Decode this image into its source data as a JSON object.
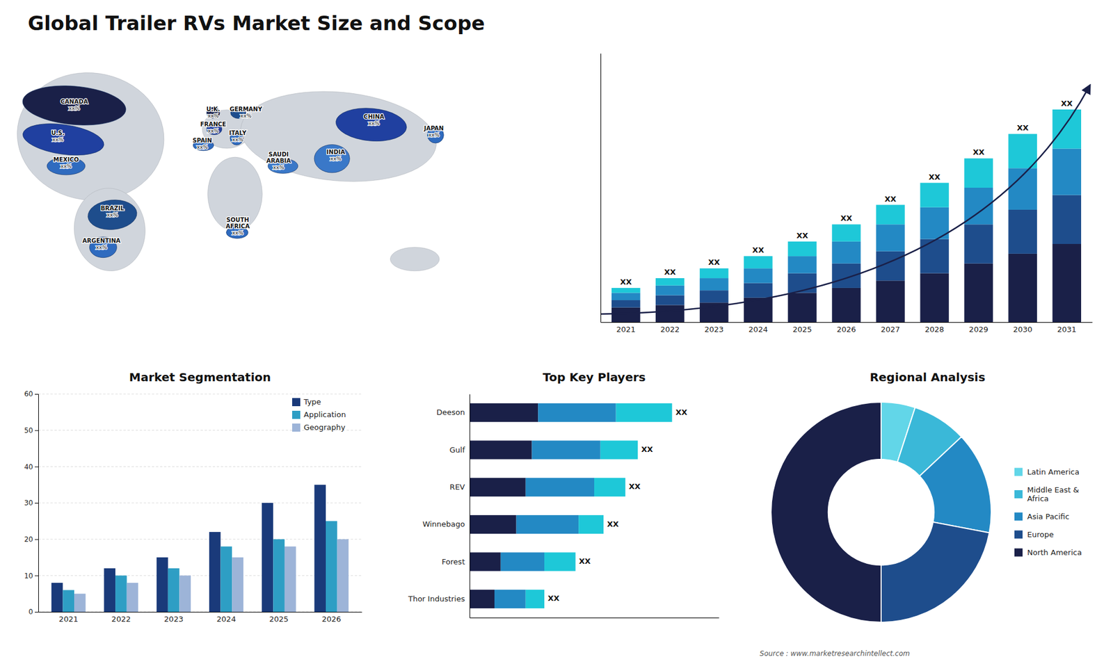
{
  "chart_data": [
    {
      "type": "map",
      "title": "Global Trailer RVs Market Size and Scope",
      "categories": [
        "CANADA",
        "U.S.",
        "MEXICO",
        "BRAZIL",
        "ARGENTINA",
        "U.K.",
        "FRANCE",
        "SPAIN",
        "GERMANY",
        "ITALY",
        "SOUTH\nAFRICA",
        "SAUDI\nARABIA",
        "CHINA",
        "INDIA",
        "JAPAN"
      ],
      "annotations": [
        "xx%",
        "xx%",
        "xx%",
        "xx%",
        "xx%",
        "xx%",
        "xx%",
        "xx%",
        "xx%",
        "xx%",
        "xx%",
        "xx%",
        "xx%",
        "xx%",
        "xx%"
      ]
    },
    {
      "type": "bar",
      "stacked": true,
      "categories": [
        "2021",
        "2022",
        "2023",
        "2024",
        "2025",
        "2026",
        "2027",
        "2028",
        "2029",
        "2030",
        "2031"
      ],
      "series": [
        {
          "color": "#1a2048",
          "values": [
            3.0,
            3.5,
            4.0,
            5.0,
            6.0,
            7.0,
            8.5,
            10.0,
            12.0,
            14.0,
            16.0
          ]
        },
        {
          "color": "#1e4d8c",
          "values": [
            1.5,
            2.0,
            2.5,
            3.0,
            4.0,
            5.0,
            6.0,
            7.0,
            8.0,
            9.0,
            10.0
          ]
        },
        {
          "color": "#2389c4",
          "values": [
            1.5,
            2.0,
            2.5,
            3.0,
            3.5,
            4.5,
            5.5,
            6.5,
            7.5,
            8.5,
            9.5
          ]
        },
        {
          "color": "#1ec8d8",
          "values": [
            1.0,
            1.5,
            2.0,
            2.5,
            3.0,
            3.5,
            4.0,
            5.0,
            6.0,
            7.0,
            8.0
          ]
        }
      ],
      "ylim": [
        0,
        55
      ],
      "tick_labels": "x",
      "annotations": [
        "XX",
        "XX",
        "XX",
        "XX",
        "XX",
        "XX",
        "XX",
        "XX",
        "XX",
        "XX",
        "XX"
      ]
    },
    {
      "type": "bar",
      "title": "Market Segmentation",
      "categories": [
        "2021",
        "2022",
        "2023",
        "2024",
        "2025",
        "2026"
      ],
      "series": [
        {
          "name": "Type",
          "color": "#1a3a7a",
          "values": [
            8,
            12,
            15,
            22,
            30,
            35
          ]
        },
        {
          "name": "Application",
          "color": "#2e9ec4",
          "values": [
            6,
            10,
            12,
            18,
            20,
            25
          ]
        },
        {
          "name": "Geography",
          "color": "#9db4d8",
          "values": [
            5,
            8,
            10,
            15,
            18,
            20
          ]
        }
      ],
      "ylim": [
        0,
        60
      ],
      "yticks": [
        0,
        10,
        20,
        30,
        40,
        50,
        60
      ],
      "grid": true,
      "legend": "upper right"
    },
    {
      "type": "bar",
      "orientation": "horizontal",
      "stacked": true,
      "title": "Top Key Players",
      "categories": [
        "Deeson",
        "Gulf",
        "REV",
        "Winnebago",
        "Forest",
        "Thor Industries"
      ],
      "series": [
        {
          "color": "#1a2048",
          "values": [
            0.22,
            0.2,
            0.18,
            0.15,
            0.1,
            0.08
          ]
        },
        {
          "color": "#2389c4",
          "values": [
            0.25,
            0.22,
            0.22,
            0.2,
            0.14,
            0.1
          ]
        },
        {
          "color": "#1ec8d8",
          "values": [
            0.18,
            0.12,
            0.1,
            0.08,
            0.1,
            0.06
          ]
        }
      ],
      "xlim": [
        0,
        0.8
      ],
      "tick_labels": "y",
      "annotations": [
        "XX",
        "XX",
        "XX",
        "XX",
        "XX",
        "XX"
      ]
    },
    {
      "type": "donut",
      "title": "Regional Analysis",
      "categories": [
        "Latin America",
        "Middle East &\nAfrica",
        "Asia Pacific",
        "Europe",
        "North America"
      ],
      "values": [
        5,
        8,
        15,
        22,
        50
      ],
      "colors": [
        "#62d6e8",
        "#3ab8d8",
        "#2389c4",
        "#1e4d8c",
        "#1a2048"
      ],
      "legend": "right",
      "annotations": [
        "Source : www.marketresearchintellect.com"
      ]
    }
  ]
}
